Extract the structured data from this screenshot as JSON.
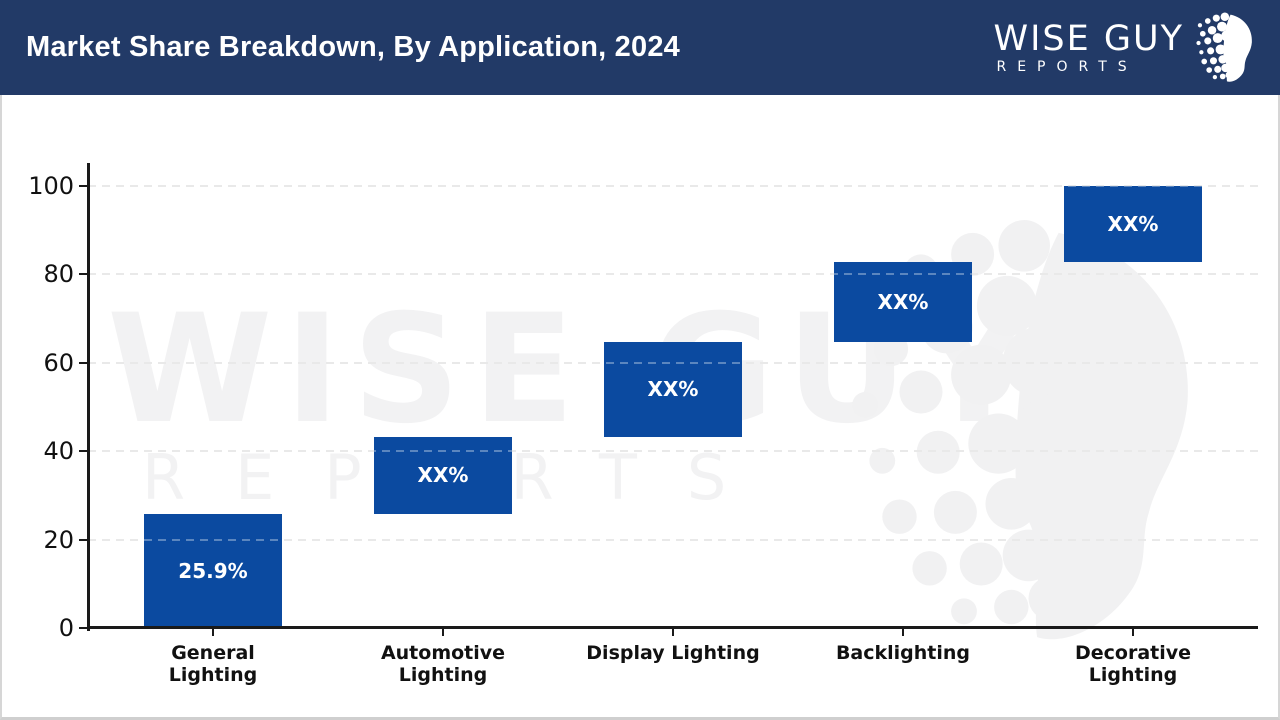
{
  "header": {
    "title": "Market Share Breakdown, By Application, 2024",
    "background_color": "#223A67",
    "logo": {
      "wordmark": "WISE GUY",
      "subtext": "REPORTS"
    }
  },
  "watermark": {
    "line1": "WISE GUY",
    "line2": "REPORTS"
  },
  "chart_data": {
    "type": "bar",
    "variant": "waterfall",
    "title": "Market Share Breakdown, By Application, 2024",
    "xlabel": "",
    "ylabel": "",
    "ylim": [
      0,
      105
    ],
    "yticks": [
      0,
      20,
      40,
      60,
      80,
      100
    ],
    "grid": true,
    "legend": false,
    "bar_color": "#0B4AA0",
    "bar_label_color": "#FFFFFF",
    "categories": [
      "General Lighting",
      "Automotive Lighting",
      "Display Lighting",
      "Backlighting",
      "Decorative Lighting"
    ],
    "bars": [
      {
        "category": "General Lighting",
        "start": 0,
        "end": 25.9,
        "label": "25.9%"
      },
      {
        "category": "Automotive Lighting",
        "start": 25.9,
        "end": 43.2,
        "label": "XX%"
      },
      {
        "category": "Display Lighting",
        "start": 43.2,
        "end": 64.8,
        "label": "XX%"
      },
      {
        "category": "Backlighting",
        "start": 64.8,
        "end": 82.9,
        "label": "XX%"
      },
      {
        "category": "Decorative Lighting",
        "start": 82.9,
        "end": 100,
        "label": "XX%"
      }
    ]
  }
}
